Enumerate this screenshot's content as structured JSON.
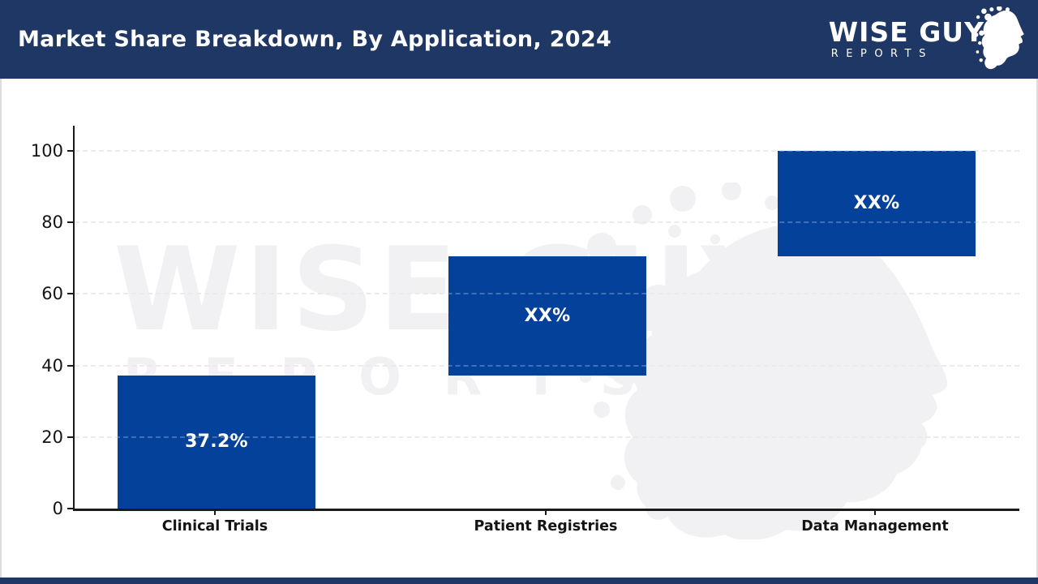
{
  "header": {
    "title": "Market Share Breakdown, By Application, 2024",
    "logo": {
      "wordmark": "WISE GUY",
      "subtext": "REPORTS"
    }
  },
  "watermark": {
    "line1": "WISE GUY",
    "line2": "R E P O R T S"
  },
  "chart_data": {
    "type": "bar",
    "subtype": "waterfall",
    "title": "Market Share Breakdown, By Application, 2024",
    "categories": [
      "Clinical Trials",
      "Patient Registries",
      "Data Management"
    ],
    "segments": [
      {
        "category": "Clinical Trials",
        "label": "37.2%",
        "start": 0,
        "end": 37.2
      },
      {
        "category": "Patient Registries",
        "label": "XX%",
        "start": 37.2,
        "end": 70.5
      },
      {
        "category": "Data Management",
        "label": "XX%",
        "start": 70.5,
        "end": 100
      }
    ],
    "y_ticks": [
      0,
      20,
      40,
      60,
      80,
      100
    ],
    "ylim": [
      0,
      107
    ],
    "xlabel": "",
    "ylabel": "",
    "grid": "horizontal-dashed",
    "legend": "none",
    "bar_color": "#03419b",
    "bar_label_color": "#ffffff"
  },
  "colors": {
    "header_bg": "#1f3765",
    "footer_bg": "#1f3765",
    "bar": "#03419b",
    "axis": "#1a1a1a",
    "grid": "#e4e4e4",
    "watermark": "#f1f1f4",
    "border": "#dcdcdc",
    "page_bg": "#ffffff"
  }
}
